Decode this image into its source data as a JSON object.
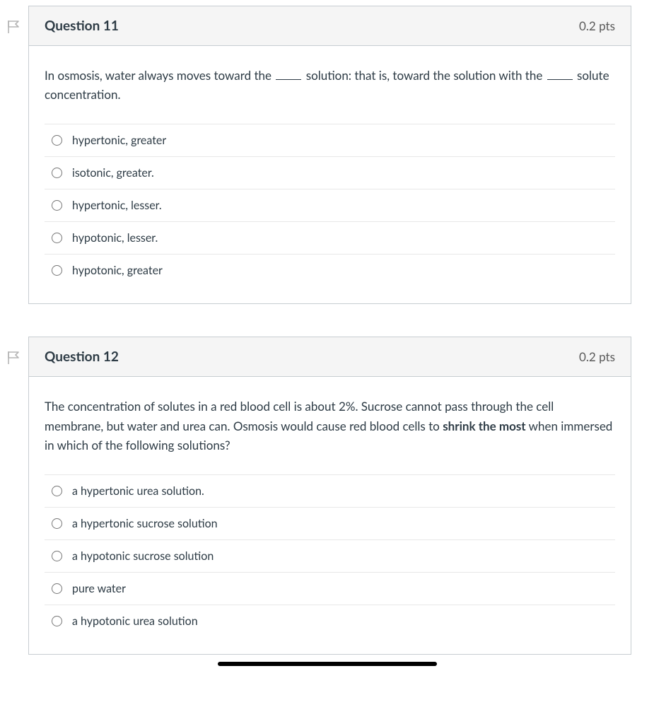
{
  "questions": [
    {
      "title": "Question 11",
      "points": "0.2 pts",
      "text_html": "In osmosis, water always moves toward the <span class=\"blank\"></span> solution: that is, toward the solution with the <span class=\"blank\"></span> solute concentration.",
      "answers": [
        "hypertonic, greater",
        "isotonic, greater.",
        "hypertonic, lesser.",
        "hypotonic, lesser.",
        "hypotonic, greater"
      ]
    },
    {
      "title": "Question 12",
      "points": "0.2 pts",
      "text_html": "The concentration of solutes in a red blood cell is about 2%. Sucrose cannot pass through the cell membrane, but water and urea can. Osmosis would cause red blood cells to <b>shrink the most</b> when immersed in which of the following solutions?",
      "answers": [
        "a hypertonic urea solution.",
        "a hypertonic sucrose solution",
        "a hypotonic sucrose solution",
        "pure water",
        "a hypotonic urea solution"
      ]
    }
  ],
  "colors": {
    "border": "#c7cdd1",
    "header_bg": "#f5f5f5",
    "text": "#2d3b45",
    "points": "#595959",
    "answer_divider": "#e8e8e8",
    "flag_stroke": "#b5b5b5"
  }
}
